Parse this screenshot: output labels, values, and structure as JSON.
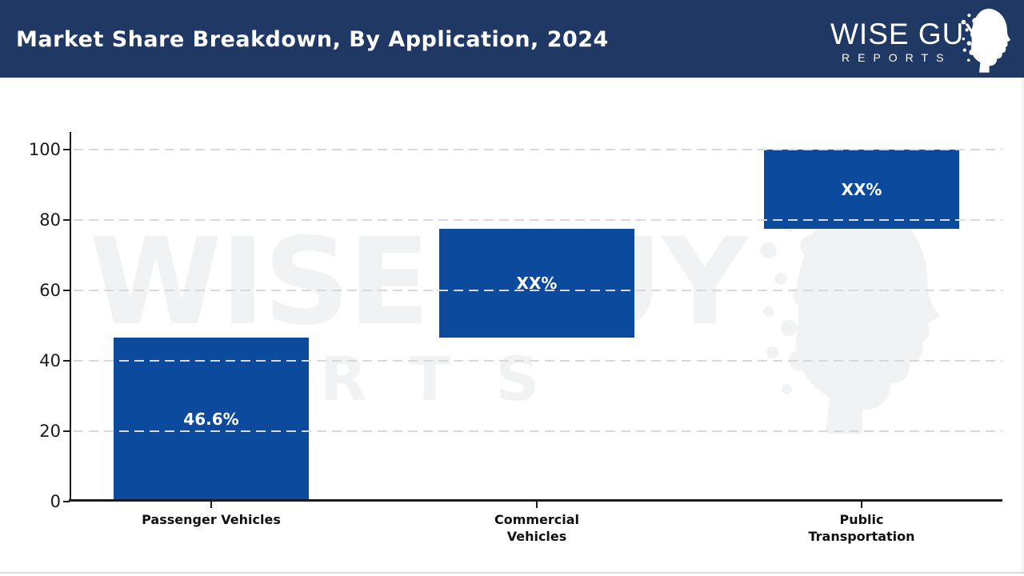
{
  "header": {
    "title": "Market Share Breakdown, By Application, 2024",
    "bg_color": "#1f3864",
    "logo": {
      "line1": "WISE GUY",
      "line2": "REPORTS"
    }
  },
  "watermark": {
    "line1": "WISE GUY",
    "line2": "PORTS"
  },
  "chart_data": {
    "type": "bar",
    "subtype": "waterfall",
    "title": "Market Share Breakdown, By Application, 2024",
    "categories": [
      "Passenger Vehicles",
      "Commercial\nVehicles",
      "Public\nTransportation"
    ],
    "segments": [
      {
        "category": "Passenger Vehicles",
        "start": 0,
        "end": 46.6,
        "label": "46.6%"
      },
      {
        "category": "Commercial Vehicles",
        "start": 46.6,
        "end": 77.5,
        "label": "XX%"
      },
      {
        "category": "Public Transportation",
        "start": 77.5,
        "end": 100,
        "label": "XX%"
      }
    ],
    "ylim": [
      0,
      100
    ],
    "yticks": [
      0,
      20,
      40,
      60,
      80,
      100
    ],
    "grid": "horizontal-dashed",
    "legend": "none",
    "bar_color": "#0c4a9e",
    "bar_label_color": "#ffffff",
    "axis_color": "#1c1c1c",
    "gridline_color": "#d9d9d9"
  }
}
